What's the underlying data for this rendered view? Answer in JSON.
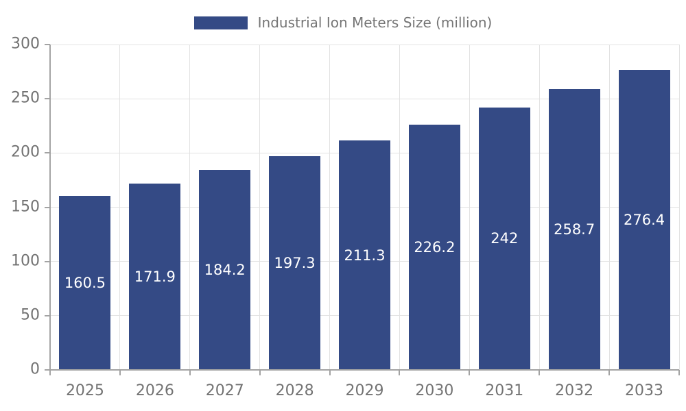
{
  "legend": {
    "label": "Industrial Ion Meters Size (million)"
  },
  "chart_data": {
    "type": "bar",
    "title": "Industrial Ion Meters Size (million)",
    "categories": [
      "2025",
      "2026",
      "2027",
      "2028",
      "2029",
      "2030",
      "2031",
      "2032",
      "2033"
    ],
    "values": [
      160.5,
      171.9,
      184.2,
      197.3,
      211.3,
      226.2,
      242,
      258.7,
      276.4
    ],
    "xlabel": "",
    "ylabel": "",
    "ylim": [
      0,
      300
    ],
    "yticks": [
      0,
      50,
      100,
      150,
      200,
      250,
      300
    ],
    "grid": true,
    "legend_position": "top-center",
    "colors": {
      "bar": "#344a85",
      "value_label": "#ffffff",
      "grid": "#e2e2e2",
      "axis": "#a3a3a3",
      "tick_label": "#737373",
      "legend_text": "#757575",
      "background": "#ffffff"
    }
  }
}
